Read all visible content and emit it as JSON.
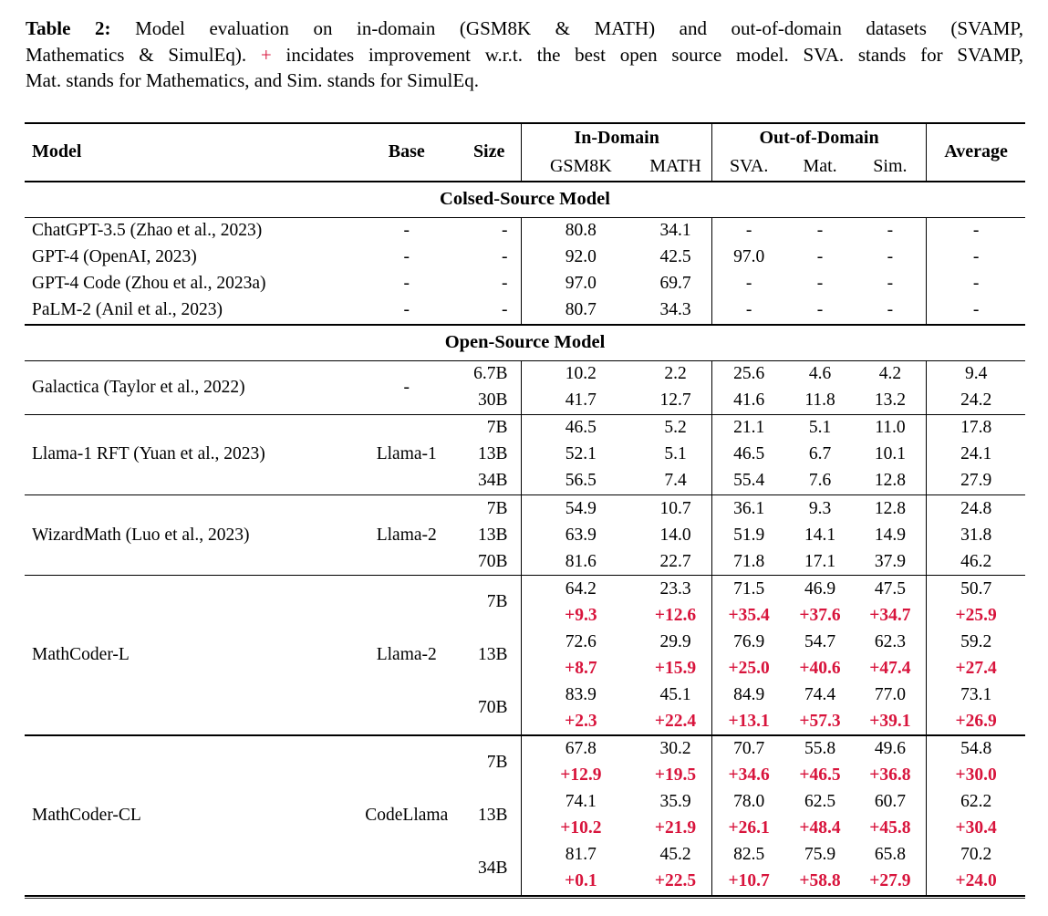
{
  "colors": {
    "delta": "#d8143c"
  },
  "caption": {
    "lines": [
      {
        "label": "Table 2:",
        "text": "Model evaluation on in-domain (GSM8K & MATH) and out-of-domain datasets (SVAMP,"
      },
      {
        "pre": "Mathematics & SimulEq). ",
        "plus": "+",
        "post": " incidates improvement w.r.t. the best open source model. SVA. stands for SVAMP,"
      },
      {
        "text": "Mat. stands for Mathematics, and Sim. stands for SimulEq."
      }
    ]
  },
  "table": {
    "header": {
      "model": "Model",
      "base": "Base",
      "size": "Size",
      "in_domain": "In-Domain",
      "out_of_domain": "Out-of-Domain",
      "average": "Average",
      "sub": [
        "GSM8K",
        "MATH",
        "SVA.",
        "Mat.",
        "Sim."
      ]
    },
    "sections": [
      {
        "title": "Colsed-Source Model",
        "group_separators": false,
        "groups": [
          {
            "model": "ChatGPT-3.5 (Zhao et al., 2023)",
            "base": "-",
            "rows": [
              {
                "size": "-",
                "values": [
                  "80.8",
                  "34.1",
                  "-",
                  "-",
                  "-",
                  "-"
                ]
              }
            ]
          },
          {
            "model": "GPT-4 (OpenAI, 2023)",
            "base": "-",
            "rows": [
              {
                "size": "-",
                "values": [
                  "92.0",
                  "42.5",
                  "97.0",
                  "-",
                  "-",
                  "-"
                ]
              }
            ]
          },
          {
            "model": "GPT-4 Code (Zhou et al., 2023a)",
            "base": "-",
            "rows": [
              {
                "size": "-",
                "values": [
                  "97.0",
                  "69.7",
                  "-",
                  "-",
                  "-",
                  "-"
                ]
              }
            ]
          },
          {
            "model": "PaLM-2 (Anil et al., 2023)",
            "base": "-",
            "rows": [
              {
                "size": "-",
                "values": [
                  "80.7",
                  "34.3",
                  "-",
                  "-",
                  "-",
                  "-"
                ]
              }
            ]
          }
        ]
      },
      {
        "title": "Open-Source Model",
        "group_separators": true,
        "groups": [
          {
            "model": "Galactica (Taylor et al., 2022)",
            "base": "-",
            "rows": [
              {
                "size": "6.7B",
                "values": [
                  "10.2",
                  "2.2",
                  "25.6",
                  "4.6",
                  "4.2",
                  "9.4"
                ]
              },
              {
                "size": "30B",
                "values": [
                  "41.7",
                  "12.7",
                  "41.6",
                  "11.8",
                  "13.2",
                  "24.2"
                ]
              }
            ]
          },
          {
            "model": "Llama-1 RFT (Yuan et al., 2023)",
            "base": "Llama-1",
            "rows": [
              {
                "size": "7B",
                "values": [
                  "46.5",
                  "5.2",
                  "21.1",
                  "5.1",
                  "11.0",
                  "17.8"
                ]
              },
              {
                "size": "13B",
                "values": [
                  "52.1",
                  "5.1",
                  "46.5",
                  "6.7",
                  "10.1",
                  "24.1"
                ]
              },
              {
                "size": "34B",
                "values": [
                  "56.5",
                  "7.4",
                  "55.4",
                  "7.6",
                  "12.8",
                  "27.9"
                ]
              }
            ]
          },
          {
            "model": "WizardMath (Luo et al., 2023)",
            "base": "Llama-2",
            "rows": [
              {
                "size": "7B",
                "values": [
                  "54.9",
                  "10.7",
                  "36.1",
                  "9.3",
                  "12.8",
                  "24.8"
                ]
              },
              {
                "size": "13B",
                "values": [
                  "63.9",
                  "14.0",
                  "51.9",
                  "14.1",
                  "14.9",
                  "31.8"
                ]
              },
              {
                "size": "70B",
                "values": [
                  "81.6",
                  "22.7",
                  "71.8",
                  "17.1",
                  "37.9",
                  "46.2"
                ]
              }
            ]
          },
          {
            "model": "MathCoder-L",
            "base": "Llama-2",
            "rows": [
              {
                "size": "7B",
                "values": [
                  "64.2",
                  "23.3",
                  "71.5",
                  "46.9",
                  "47.5",
                  "50.7"
                ],
                "deltas": [
                  "+9.3",
                  "+12.6",
                  "+35.4",
                  "+37.6",
                  "+34.7",
                  "+25.9"
                ]
              },
              {
                "size": "13B",
                "values": [
                  "72.6",
                  "29.9",
                  "76.9",
                  "54.7",
                  "62.3",
                  "59.2"
                ],
                "deltas": [
                  "+8.7",
                  "+15.9",
                  "+25.0",
                  "+40.6",
                  "+47.4",
                  "+27.4"
                ]
              },
              {
                "size": "70B",
                "values": [
                  "83.9",
                  "45.1",
                  "84.9",
                  "74.4",
                  "77.0",
                  "73.1"
                ],
                "deltas": [
                  "+2.3",
                  "+22.4",
                  "+13.1",
                  "+57.3",
                  "+39.1",
                  "+26.9"
                ]
              }
            ]
          },
          {
            "model": "MathCoder-CL",
            "base": "CodeLlama",
            "rows": [
              {
                "size": "7B",
                "values": [
                  "67.8",
                  "30.2",
                  "70.7",
                  "55.8",
                  "49.6",
                  "54.8"
                ],
                "deltas": [
                  "+12.9",
                  "+19.5",
                  "+34.6",
                  "+46.5",
                  "+36.8",
                  "+30.0"
                ]
              },
              {
                "size": "13B",
                "values": [
                  "74.1",
                  "35.9",
                  "78.0",
                  "62.5",
                  "60.7",
                  "62.2"
                ],
                "deltas": [
                  "+10.2",
                  "+21.9",
                  "+26.1",
                  "+48.4",
                  "+45.8",
                  "+30.4"
                ]
              },
              {
                "size": "34B",
                "values": [
                  "81.7",
                  "45.2",
                  "82.5",
                  "75.9",
                  "65.8",
                  "70.2"
                ],
                "deltas": [
                  "+0.1",
                  "+22.5",
                  "+10.7",
                  "+58.8",
                  "+27.9",
                  "+24.0"
                ]
              }
            ]
          }
        ]
      }
    ]
  }
}
